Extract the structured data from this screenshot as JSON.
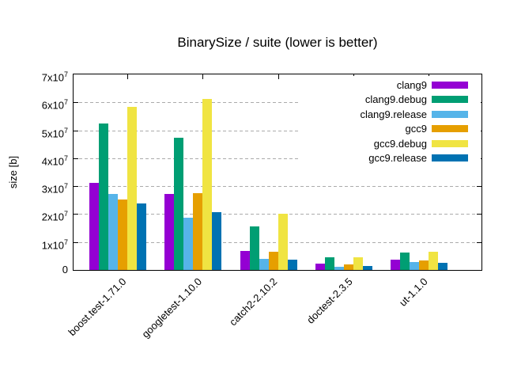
{
  "chart_data": {
    "type": "bar",
    "title": "BinarySize / suite (lower is better)",
    "ylabel": "size [b]",
    "xlabel": "",
    "categories": [
      "boost.test-1.71.0",
      "googletest-1.10.0",
      "catch2-2.10.2",
      "doctest-2.3.5",
      "ut-1.1.0"
    ],
    "series": [
      {
        "name": "clang9",
        "color": "#9400d3",
        "values": [
          31200000,
          27300000,
          6800000,
          2400000,
          3700000
        ]
      },
      {
        "name": "clang9.debug",
        "color": "#009e73",
        "values": [
          52400000,
          47200000,
          15600000,
          4600000,
          6300000
        ]
      },
      {
        "name": "clang9.release",
        "color": "#56b4e9",
        "values": [
          27100000,
          18600000,
          4000000,
          1200000,
          2800000
        ]
      },
      {
        "name": "gcc9",
        "color": "#e69f00",
        "values": [
          25300000,
          27400000,
          6600000,
          2100000,
          3400000
        ]
      },
      {
        "name": "gcc9.debug",
        "color": "#f0e442",
        "values": [
          58400000,
          61300000,
          20000000,
          4400000,
          6400000
        ]
      },
      {
        "name": "gcc9.release",
        "color": "#0072b2",
        "values": [
          23700000,
          20700000,
          3600000,
          1500000,
          2500000
        ]
      }
    ],
    "ylim": [
      0,
      70000000
    ],
    "ytick_step": 10000000,
    "ytick_labels": [
      "0",
      "1x10^7",
      "2x10^7",
      "3x10^7",
      "4x10^7",
      "5x10^7",
      "6x10^7",
      "7x10^7"
    ],
    "grid": true,
    "grid_color": "#ababab",
    "axis_color": "#000000",
    "legend_position": "top-right-inside",
    "legend_opaque": true
  }
}
